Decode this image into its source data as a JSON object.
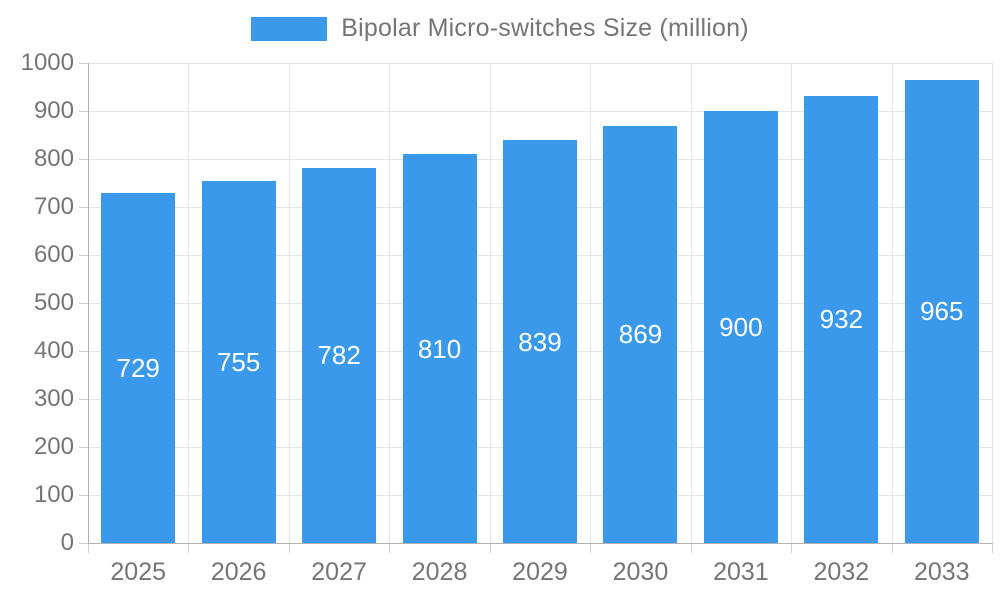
{
  "legend": {
    "label": "Bipolar Micro-switches Size (million)",
    "swatch_color": "#3b99ec"
  },
  "chart_data": {
    "type": "bar",
    "title": "Bipolar Micro-switches Size (million)",
    "categories": [
      "2025",
      "2026",
      "2027",
      "2028",
      "2029",
      "2030",
      "2031",
      "2032",
      "2033"
    ],
    "values": [
      729,
      755,
      782,
      810,
      839,
      869,
      900,
      932,
      965
    ],
    "xlabel": "",
    "ylabel": "",
    "ylim": [
      0,
      1000
    ],
    "ytick_step": 100,
    "grid": true,
    "legend_position": "top",
    "colors": {
      "bar": "#3b99ec",
      "bar_label": "#ffffff",
      "axis_text": "#757575",
      "gridline": "#e4e4e4",
      "axis_line": "#b1b1b1"
    }
  }
}
